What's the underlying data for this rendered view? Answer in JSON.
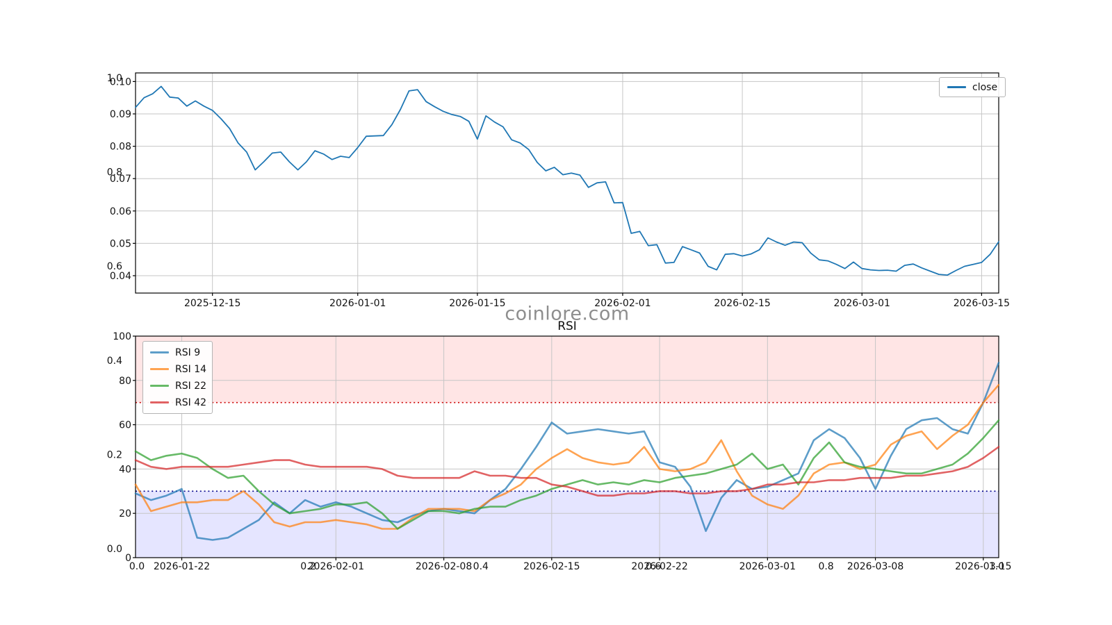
{
  "watermark": "coinlore.com",
  "price_chart": {
    "legend_label": "close",
    "line_color": "#1f77b4"
  },
  "rsi_chart": {
    "title": "RSI",
    "legend": [
      {
        "label": "RSI 9",
        "color": "#1f77b4"
      },
      {
        "label": "RSI 14",
        "color": "#ff7f0e"
      },
      {
        "label": "RSI 22",
        "color": "#2ca02c"
      },
      {
        "label": "RSI 42",
        "color": "#d62728"
      }
    ],
    "overbought_level": 70,
    "oversold_level": 30,
    "overbought_band_color": "rgba(255,0,0,0.10)",
    "oversold_band_color": "rgba(0,0,255,0.10)",
    "overbought_line_color": "#cc0000",
    "oversold_line_color": "#00008b"
  },
  "background_axis": {
    "left_labels": [
      "1.0",
      "0.8",
      "0.6",
      "0.4",
      "0.2",
      "0.0"
    ],
    "bottom_labels": [
      "0.0",
      "0.2",
      "0.4",
      "0.6",
      "0.8",
      "1.0"
    ]
  },
  "chart_data": [
    {
      "type": "line",
      "title": "",
      "ylabel": "",
      "xlabel": "",
      "legend_position": "upper right",
      "grid": true,
      "ylim": [
        0.0346,
        0.1027
      ],
      "y_ticks": [
        "0.04",
        "0.05",
        "0.06",
        "0.07",
        "0.08",
        "0.09",
        "0.10"
      ],
      "y_tick_values": [
        0.04,
        0.05,
        0.06,
        0.07,
        0.08,
        0.09,
        0.1
      ],
      "x_ticks": [
        "2025-12-15",
        "2026-01-01",
        "2026-01-15",
        "2026-02-01",
        "2026-02-15",
        "2026-03-01",
        "2026-03-15"
      ],
      "x": [
        "2025-12-06",
        "2025-12-07",
        "2025-12-08",
        "2025-12-09",
        "2025-12-10",
        "2025-12-11",
        "2025-12-12",
        "2025-12-13",
        "2025-12-14",
        "2025-12-15",
        "2025-12-16",
        "2025-12-17",
        "2025-12-18",
        "2025-12-19",
        "2025-12-20",
        "2025-12-21",
        "2025-12-22",
        "2025-12-23",
        "2025-12-24",
        "2025-12-25",
        "2025-12-26",
        "2025-12-27",
        "2025-12-28",
        "2025-12-29",
        "2025-12-30",
        "2025-12-31",
        "2026-01-01",
        "2026-01-02",
        "2026-01-03",
        "2026-01-04",
        "2026-01-05",
        "2026-01-06",
        "2026-01-07",
        "2026-01-08",
        "2026-01-09",
        "2026-01-10",
        "2026-01-11",
        "2026-01-12",
        "2026-01-13",
        "2026-01-14",
        "2026-01-15",
        "2026-01-16",
        "2026-01-17",
        "2026-01-18",
        "2026-01-19",
        "2026-01-20",
        "2026-01-21",
        "2026-01-22",
        "2026-01-23",
        "2026-01-24",
        "2026-01-25",
        "2026-01-26",
        "2026-01-27",
        "2026-01-28",
        "2026-01-29",
        "2026-01-30",
        "2026-01-31",
        "2026-02-01",
        "2026-02-02",
        "2026-02-03",
        "2026-02-04",
        "2026-02-05",
        "2026-02-06",
        "2026-02-07",
        "2026-02-08",
        "2026-02-09",
        "2026-02-10",
        "2026-02-11",
        "2026-02-12",
        "2026-02-13",
        "2026-02-14",
        "2026-02-15",
        "2026-02-16",
        "2026-02-17",
        "2026-02-18",
        "2026-02-19",
        "2026-02-20",
        "2026-02-21",
        "2026-02-22",
        "2026-02-23",
        "2026-02-24",
        "2026-02-25",
        "2026-02-26",
        "2026-02-27",
        "2026-02-28",
        "2026-03-01",
        "2026-03-02",
        "2026-03-03",
        "2026-03-04",
        "2026-03-05",
        "2026-03-06",
        "2026-03-07",
        "2026-03-08",
        "2026-03-09",
        "2026-03-10",
        "2026-03-11",
        "2026-03-12",
        "2026-03-13",
        "2026-03-14",
        "2026-03-15",
        "2026-03-16",
        "2026-03-17"
      ],
      "series": [
        {
          "name": "close",
          "color": "#1f77b4",
          "values": [
            0.092,
            0.095,
            0.0962,
            0.0985,
            0.0952,
            0.0949,
            0.0924,
            0.094,
            0.0924,
            0.0911,
            0.0885,
            0.0855,
            0.081,
            0.0782,
            0.0727,
            0.0752,
            0.0779,
            0.0782,
            0.0752,
            0.0727,
            0.0752,
            0.0786,
            0.0776,
            0.0759,
            0.0769,
            0.0765,
            0.0796,
            0.0831,
            0.0832,
            0.0833,
            0.0867,
            0.0914,
            0.0971,
            0.0975,
            0.0938,
            0.0922,
            0.0908,
            0.0898,
            0.0892,
            0.0877,
            0.0822,
            0.0894,
            0.0875,
            0.086,
            0.082,
            0.081,
            0.079,
            0.075,
            0.0724,
            0.0735,
            0.0712,
            0.0717,
            0.0711,
            0.0673,
            0.0687,
            0.069,
            0.0625,
            0.0626,
            0.0531,
            0.0537,
            0.0493,
            0.0496,
            0.0439,
            0.0441,
            0.049,
            0.048,
            0.047,
            0.0429,
            0.0418,
            0.0466,
            0.0468,
            0.0461,
            0.0467,
            0.048,
            0.0517,
            0.0504,
            0.0494,
            0.0504,
            0.0502,
            0.047,
            0.0449,
            0.0446,
            0.0435,
            0.0422,
            0.0442,
            0.0422,
            0.0418,
            0.0416,
            0.0417,
            0.0414,
            0.0432,
            0.0436,
            0.0424,
            0.0414,
            0.0404,
            0.0402,
            0.0416,
            0.0429,
            0.0435,
            0.0441,
            0.0466,
            0.0505
          ]
        }
      ]
    },
    {
      "type": "line",
      "title": "RSI",
      "ylabel": "",
      "xlabel": "",
      "legend_position": "upper left",
      "grid": true,
      "ylim": [
        0,
        100
      ],
      "y_ticks": [
        "0",
        "20",
        "40",
        "60",
        "80",
        "100"
      ],
      "y_tick_values": [
        0,
        20,
        40,
        60,
        80,
        100
      ],
      "x_ticks": [
        "2026-01-22",
        "2026-02-01",
        "2026-02-08",
        "2026-02-15",
        "2026-02-22",
        "2026-03-01",
        "2026-03-08",
        "2026-03-15"
      ],
      "hlines": [
        {
          "y": 70,
          "style": "dotted",
          "color": "#cc0000"
        },
        {
          "y": 30,
          "style": "dotted",
          "color": "#00008b"
        }
      ],
      "bands": [
        {
          "from": 70,
          "to": 100,
          "color": "rgba(255,0,0,0.10)"
        },
        {
          "from": 0,
          "to": 30,
          "color": "rgba(0,0,255,0.10)"
        }
      ],
      "x": [
        "2026-01-19",
        "2026-01-20",
        "2026-01-21",
        "2026-01-22",
        "2026-01-23",
        "2026-01-24",
        "2026-01-25",
        "2026-01-26",
        "2026-01-27",
        "2026-01-28",
        "2026-01-29",
        "2026-01-30",
        "2026-01-31",
        "2026-02-01",
        "2026-02-02",
        "2026-02-03",
        "2026-02-04",
        "2026-02-05",
        "2026-02-06",
        "2026-02-07",
        "2026-02-08",
        "2026-02-09",
        "2026-02-10",
        "2026-02-11",
        "2026-02-12",
        "2026-02-13",
        "2026-02-14",
        "2026-02-15",
        "2026-02-16",
        "2026-02-17",
        "2026-02-18",
        "2026-02-19",
        "2026-02-20",
        "2026-02-21",
        "2026-02-22",
        "2026-02-23",
        "2026-02-24",
        "2026-02-25",
        "2026-02-26",
        "2026-02-27",
        "2026-02-28",
        "2026-03-01",
        "2026-03-02",
        "2026-03-03",
        "2026-03-04",
        "2026-03-05",
        "2026-03-06",
        "2026-03-07",
        "2026-03-08",
        "2026-03-09",
        "2026-03-10",
        "2026-03-11",
        "2026-03-12",
        "2026-03-13",
        "2026-03-14",
        "2026-03-15",
        "2026-03-16"
      ],
      "series": [
        {
          "name": "RSI 9",
          "color": "#1f77b4",
          "values": [
            29,
            26,
            28,
            31,
            9,
            8,
            9,
            13,
            17,
            25,
            20,
            26,
            23,
            25,
            23,
            20,
            17,
            16,
            19,
            21,
            22,
            21,
            20,
            26,
            31,
            40,
            50,
            61,
            56,
            57,
            58,
            57,
            56,
            57,
            43,
            41,
            32,
            12,
            27,
            35,
            31,
            32,
            35,
            38,
            53,
            58,
            54,
            45,
            31,
            46,
            58,
            62,
            63,
            58,
            56,
            70,
            88
          ]
        },
        {
          "name": "RSI 14",
          "color": "#ff7f0e",
          "values": [
            33,
            21,
            23,
            25,
            25,
            26,
            26,
            30,
            24,
            16,
            14,
            16,
            16,
            17,
            16,
            15,
            13,
            13,
            18,
            22,
            22,
            22,
            21,
            26,
            29,
            33,
            40,
            45,
            49,
            45,
            43,
            42,
            43,
            50,
            40,
            39,
            40,
            43,
            53,
            39,
            28,
            24,
            22,
            28,
            38,
            42,
            43,
            40,
            42,
            51,
            55,
            57,
            49,
            55,
            60,
            70,
            78
          ]
        },
        {
          "name": "RSI 22",
          "color": "#2ca02c",
          "values": [
            48,
            44,
            46,
            47,
            45,
            40,
            36,
            37,
            30,
            24,
            20,
            21,
            22,
            24,
            24,
            25,
            20,
            13,
            17,
            21,
            21,
            20,
            22,
            23,
            23,
            26,
            28,
            31,
            33,
            35,
            33,
            34,
            33,
            35,
            34,
            36,
            37,
            38,
            40,
            42,
            47,
            40,
            42,
            33,
            45,
            52,
            43,
            41,
            40,
            39,
            38,
            38,
            40,
            42,
            47,
            54,
            62
          ]
        },
        {
          "name": "RSI 42",
          "color": "#d62728",
          "values": [
            44,
            41,
            40,
            41,
            41,
            41,
            41,
            42,
            43,
            44,
            44,
            42,
            41,
            41,
            41,
            41,
            40,
            37,
            36,
            36,
            36,
            36,
            39,
            37,
            37,
            36,
            36,
            33,
            32,
            30,
            28,
            28,
            29,
            29,
            30,
            30,
            29,
            29,
            30,
            30,
            31,
            33,
            33,
            34,
            34,
            35,
            35,
            36,
            36,
            36,
            37,
            37,
            38,
            39,
            41,
            45,
            50
          ]
        }
      ]
    }
  ]
}
